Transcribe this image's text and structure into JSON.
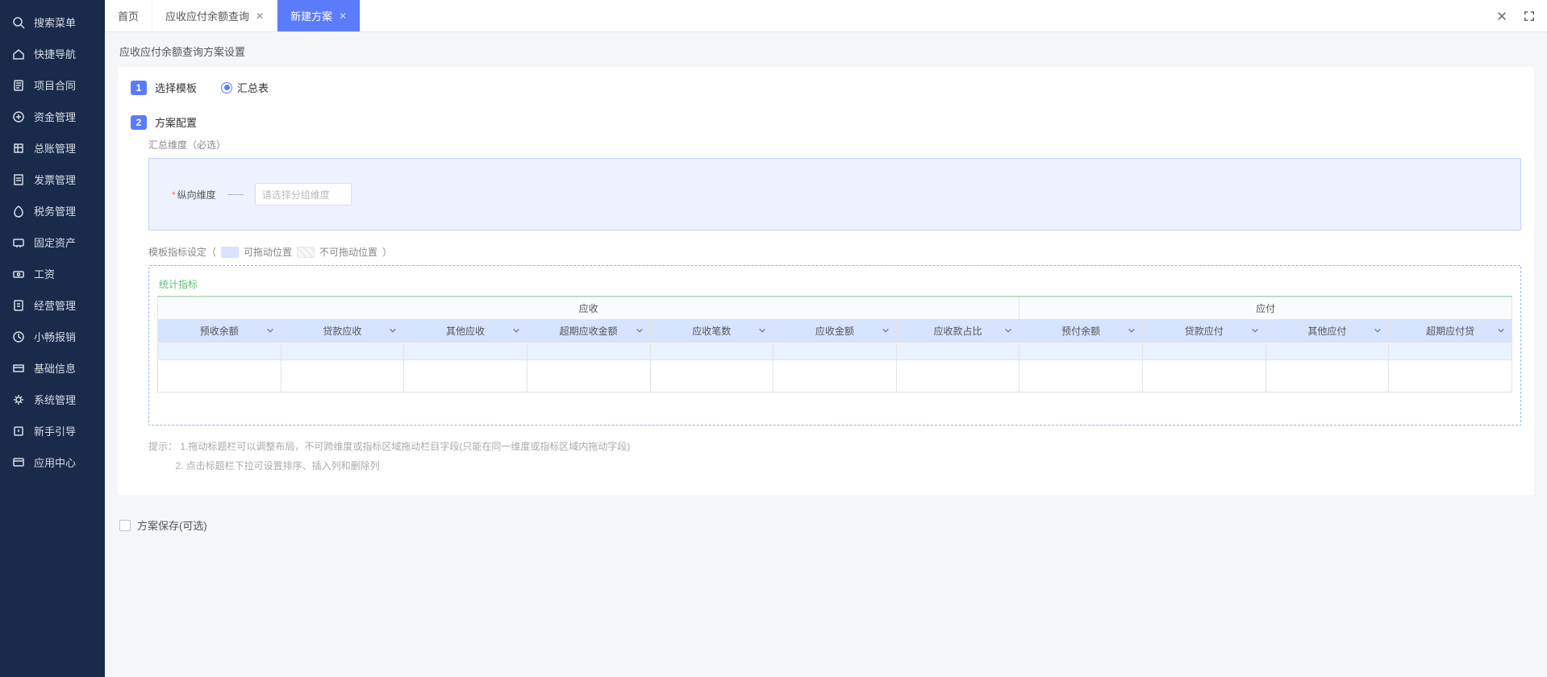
{
  "sidebar": {
    "items": [
      {
        "label": "搜索菜单",
        "icon": "search"
      },
      {
        "label": "快捷导航",
        "icon": "home"
      },
      {
        "label": "项目合同",
        "icon": "contract"
      },
      {
        "label": "资金管理",
        "icon": "fund"
      },
      {
        "label": "总账管理",
        "icon": "ledger"
      },
      {
        "label": "发票管理",
        "icon": "invoice"
      },
      {
        "label": "税务管理",
        "icon": "tax"
      },
      {
        "label": "固定资产",
        "icon": "asset"
      },
      {
        "label": "工资",
        "icon": "salary"
      },
      {
        "label": "经营管理",
        "icon": "business"
      },
      {
        "label": "小畅报销",
        "icon": "reimburse"
      },
      {
        "label": "基础信息",
        "icon": "info"
      },
      {
        "label": "系统管理",
        "icon": "system"
      },
      {
        "label": "新手引导",
        "icon": "guide"
      },
      {
        "label": "应用中心",
        "icon": "apps"
      }
    ]
  },
  "tabs": [
    {
      "label": "首页",
      "closable": false,
      "active": false
    },
    {
      "label": "应收应付余额查询",
      "closable": true,
      "active": false
    },
    {
      "label": "新建方案",
      "closable": true,
      "active": true
    }
  ],
  "page": {
    "title": "应收应付余额查询方案设置",
    "step1": {
      "num": "1",
      "label": "选择模板",
      "radio_label": "汇总表"
    },
    "step2": {
      "num": "2",
      "label": "方案配置",
      "dim_section_label": "汇总维度（必选）",
      "vertical_dim_label": "纵向维度",
      "vertical_dim_placeholder": "请选择分组维度",
      "indicator_legend_prefix": "模板指标设定（",
      "legend_drag": "可拖动位置",
      "legend_nodrag": "不可拖动位置",
      "indicator_legend_suffix": "）",
      "stat_label": "统计指标",
      "groups": [
        {
          "label": "应收",
          "span": 6
        },
        {
          "label": "应付",
          "span": 4
        }
      ],
      "columns": [
        "预收余额",
        "贷款应收",
        "其他应收",
        "超期应收金额",
        "应收笔数",
        "应收金额",
        "应收款占比",
        "预付余额",
        "贷款应付",
        "其他应付",
        "超期应付贷"
      ],
      "hints_prefix": "提示：",
      "hint1": "1.拖动标题栏可以调整布局，不可跨维度或指标区域拖动栏目字段(只能在同一维度或指标区域内拖动字段)",
      "hint2": "2. 点击标题栏下拉可设置排序、插入列和删除列"
    },
    "save_label": "方案保存(可选)"
  },
  "colors": {
    "sidebar_bg": "#1a2a4a",
    "primary": "#5b7cfa",
    "dim_box_bg": "#eef2ff",
    "col_head_bg": "#d6e4ff",
    "stat_green": "#5fbf77"
  }
}
